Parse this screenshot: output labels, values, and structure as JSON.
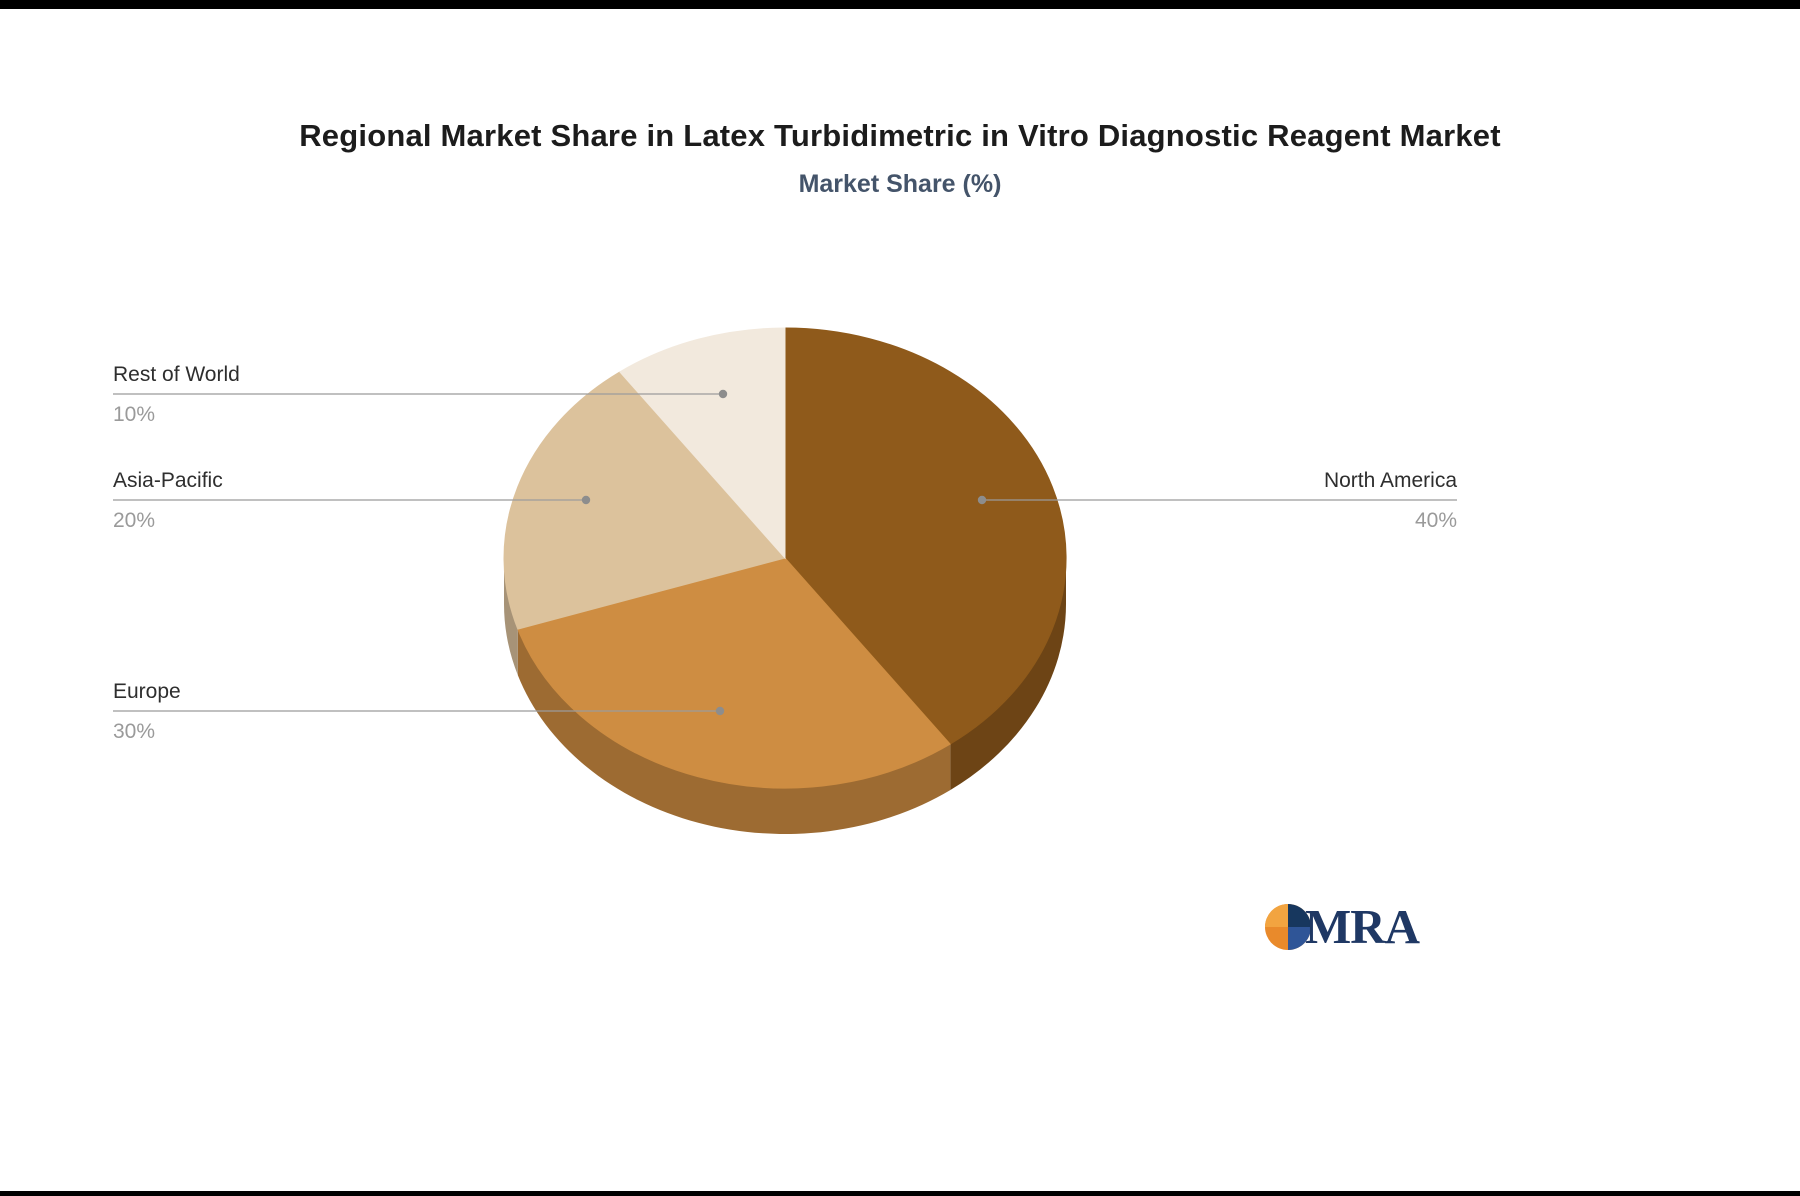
{
  "header": {
    "title": "Regional Market Share in Latex Turbidimetric in Vitro Diagnostic Reagent Market",
    "subtitle": "Market Share (%)"
  },
  "chart_data": {
    "type": "pie",
    "title": "Regional Market Share in Latex Turbidimetric in Vitro Diagnostic Reagent Market",
    "subtitle": "Market Share (%)",
    "categories": [
      "North America",
      "Europe",
      "Asia-Pacific",
      "Rest of World"
    ],
    "values": [
      40,
      30,
      20,
      10
    ],
    "unit": "%",
    "colors": [
      "#8F5A1B",
      "#CE8D42",
      "#DCC29C",
      "#F2E9DD"
    ],
    "start_angle_deg": 0,
    "direction": "clockwise",
    "style": "3d-pie",
    "legend_position": "none",
    "labels": [
      {
        "name": "North America",
        "value_label": "40%"
      },
      {
        "name": "Europe",
        "value_label": "30%"
      },
      {
        "name": "Asia-Pacific",
        "value_label": "20%"
      },
      {
        "name": "Rest of World",
        "value_label": "10%"
      }
    ]
  },
  "branding": {
    "logo_text": "MRA",
    "logo_navy": "#1F3864",
    "logo_orange": "#E98A2B"
  }
}
